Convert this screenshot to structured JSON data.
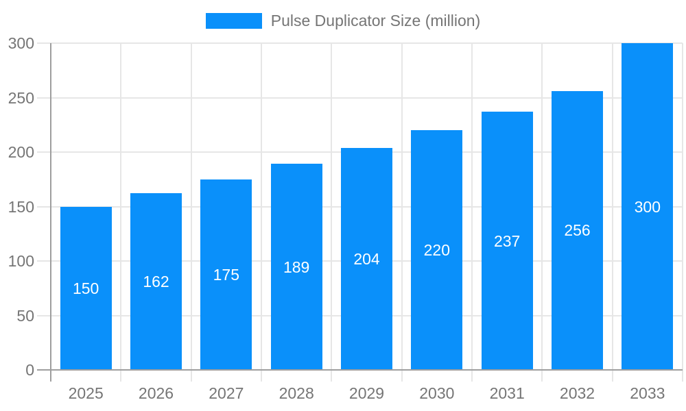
{
  "chart_data": {
    "type": "bar",
    "title": "",
    "legend": {
      "label": "Pulse Duplicator Size (million)",
      "position": "top"
    },
    "categories": [
      "2025",
      "2026",
      "2027",
      "2028",
      "2029",
      "2030",
      "2031",
      "2032",
      "2033"
    ],
    "series": [
      {
        "name": "Pulse Duplicator Size (million)",
        "values": [
          150,
          162,
          175,
          189,
          204,
          220,
          237,
          256,
          300
        ]
      }
    ],
    "bar_labels": [
      "150",
      "162",
      "175",
      "189",
      "204",
      "220",
      "237",
      "256",
      "300"
    ],
    "xlabel": "",
    "ylabel": "",
    "ylim": [
      0,
      300
    ],
    "yticks": [
      0,
      50,
      100,
      150,
      200,
      250,
      300
    ],
    "grid": true,
    "colors": {
      "bar": "#0a90fa",
      "grid": "#e6e6e6",
      "axis": "#9e9e9e",
      "tick_text": "#757575",
      "bar_label": "#ffffff",
      "legend_text": "#757575",
      "background": "#ffffff"
    }
  }
}
